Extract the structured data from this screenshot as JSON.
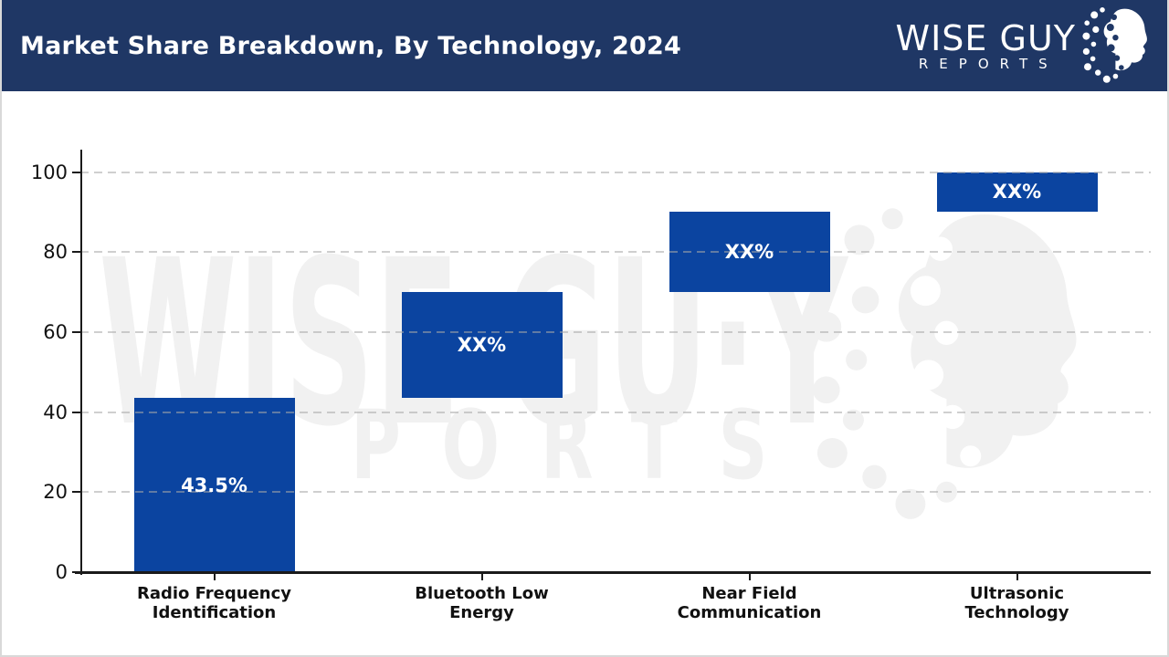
{
  "header": {
    "title": "Market Share Breakdown, By Technology, 2024",
    "bg_color": "#1f3765",
    "logo": {
      "wordmark": "WISE GUY",
      "subtext": "REPORTS"
    }
  },
  "watermark": {
    "line1": "WISE GU·Y",
    "line2": "PORTS"
  },
  "chart_data": {
    "type": "bar",
    "subtype": "waterfall",
    "title": "Market Share Breakdown, By Technology, 2024",
    "categories": [
      {
        "label": "Radio Frequency Identification",
        "lines": [
          "Radio Frequency",
          "Identification"
        ]
      },
      {
        "label": "Bluetooth Low Energy",
        "lines": [
          "Bluetooth Low",
          "Energy"
        ]
      },
      {
        "label": "Near Field Communication",
        "lines": [
          "Near Field",
          "Communication"
        ]
      },
      {
        "label": "Ultrasonic Technology",
        "lines": [
          "Ultrasonic",
          "Technology"
        ]
      }
    ],
    "segments": [
      {
        "category": "Radio Frequency Identification",
        "start": 0,
        "end": 43.5,
        "label": "43.5%"
      },
      {
        "category": "Bluetooth Low Energy",
        "start": 43.5,
        "end": 70,
        "label": "XX%"
      },
      {
        "category": "Near Field Communication",
        "start": 70,
        "end": 90,
        "label": "XX%"
      },
      {
        "category": "Ultrasonic Technology",
        "start": 90,
        "end": 100,
        "label": "XX%"
      }
    ],
    "yticks": [
      0,
      20,
      40,
      60,
      80,
      100
    ],
    "ylim": [
      0,
      105
    ],
    "xlabel": "",
    "ylabel": "",
    "bar_color": "#0b44a0",
    "grid": "horizontal-dashed",
    "gridline_color": "#d8d8d8",
    "legend": false
  }
}
